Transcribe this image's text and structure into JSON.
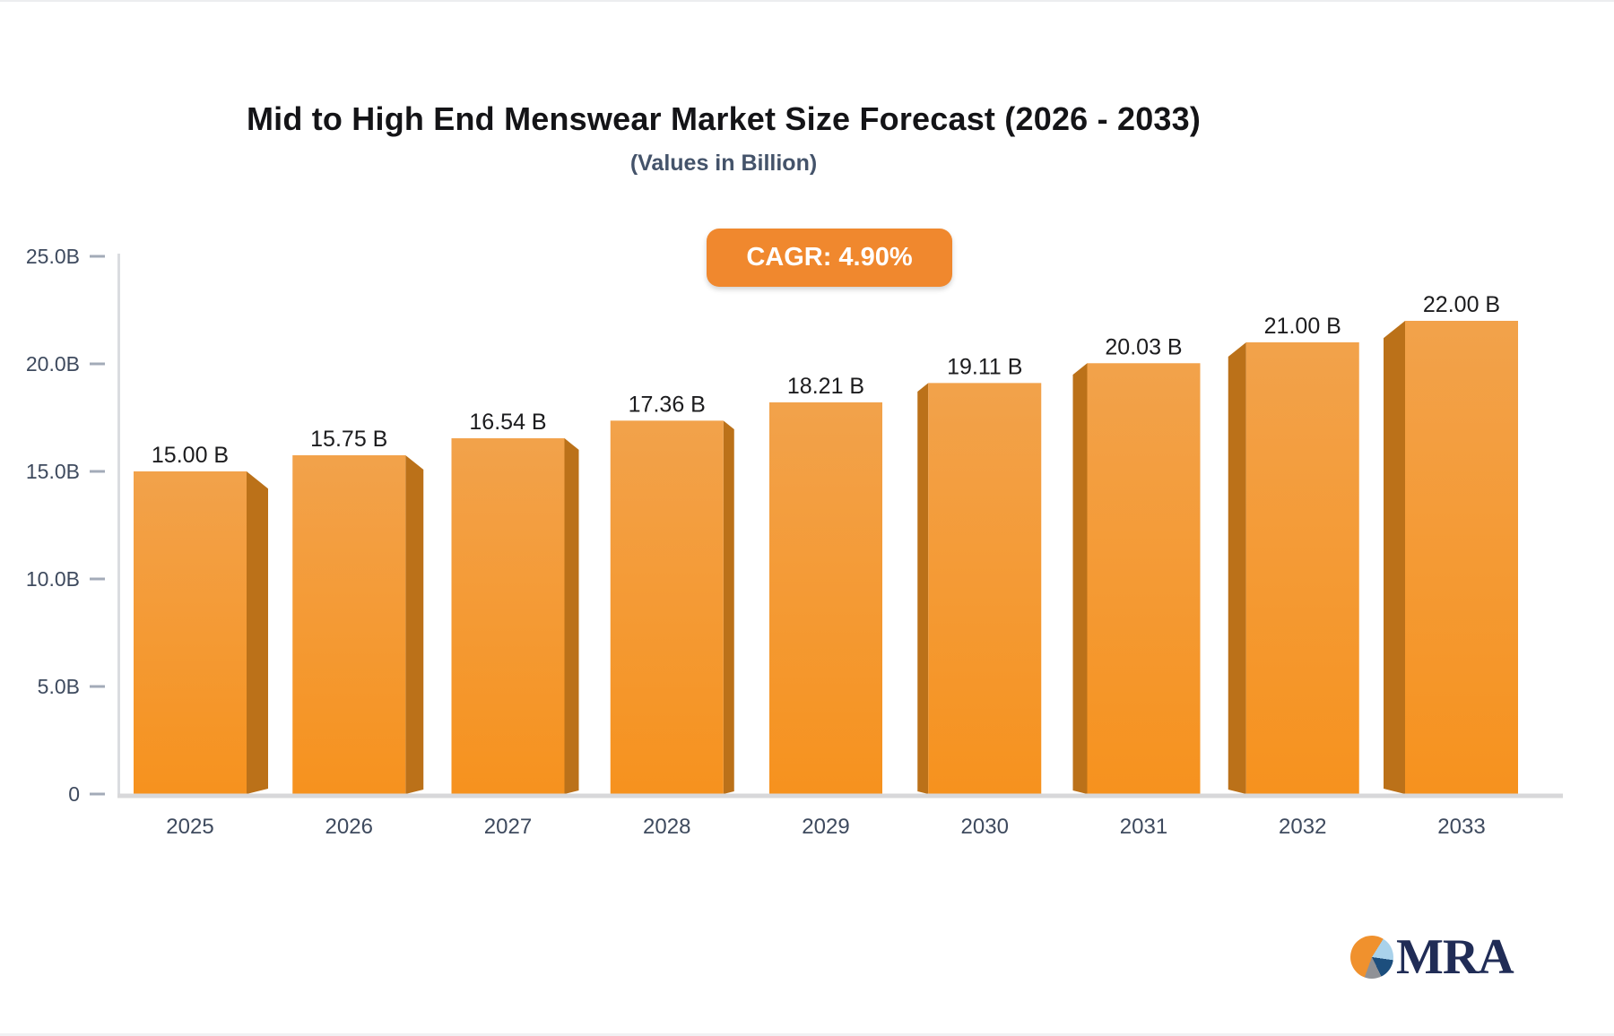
{
  "header": {
    "title": "Mid to High End Menswear Market Size Forecast (2026 - 2033)",
    "subtitle": "(Values in Billion)",
    "cagr_badge": "CAGR: 4.90%"
  },
  "chart_data": {
    "type": "bar",
    "title": "Mid to High End Menswear Market Size Forecast (2026 - 2033)",
    "subtitle": "(Values in Billion)",
    "annotation": "CAGR: 4.90%",
    "categories": [
      "2025",
      "2026",
      "2027",
      "2028",
      "2029",
      "2030",
      "2031",
      "2032",
      "2033"
    ],
    "values": [
      15.0,
      15.75,
      16.54,
      17.36,
      18.21,
      19.11,
      20.03,
      21.0,
      22.0
    ],
    "value_labels": [
      "15.00 B",
      "15.75 B",
      "16.54 B",
      "17.36 B",
      "18.21 B",
      "19.11 B",
      "20.03 B",
      "21.00 B",
      "22.00 B"
    ],
    "y_tick_values": [
      0,
      5,
      10,
      15,
      20,
      25
    ],
    "y_tick_labels": [
      "0",
      "5.0B",
      "10.0B",
      "15.0B",
      "20.0B",
      "25.0B"
    ],
    "ylim": [
      0,
      25
    ],
    "xlabel": "",
    "ylabel": "",
    "grid": "off",
    "legend": "none",
    "bar_style": "3d-perspective-center",
    "colors": {
      "bar_gradient_top": "#F2A24B",
      "bar_gradient_bottom": "#F6921E",
      "bar_side": "#BB7119",
      "badge_bg": "#F0882E",
      "axis_text": "#3E4A5E",
      "value_text": "#1C1C1E",
      "axis_line": "#DADCE0",
      "baseline": "#D8D8DA",
      "tick": "#A3ABB8"
    }
  },
  "logo": {
    "text": "MRA",
    "text_color": "#202C56",
    "pie_colors": {
      "orange": "#F0912D",
      "light_blue": "#A9D2EB",
      "navy": "#1C4E7D",
      "gray": "#8F9196"
    }
  }
}
